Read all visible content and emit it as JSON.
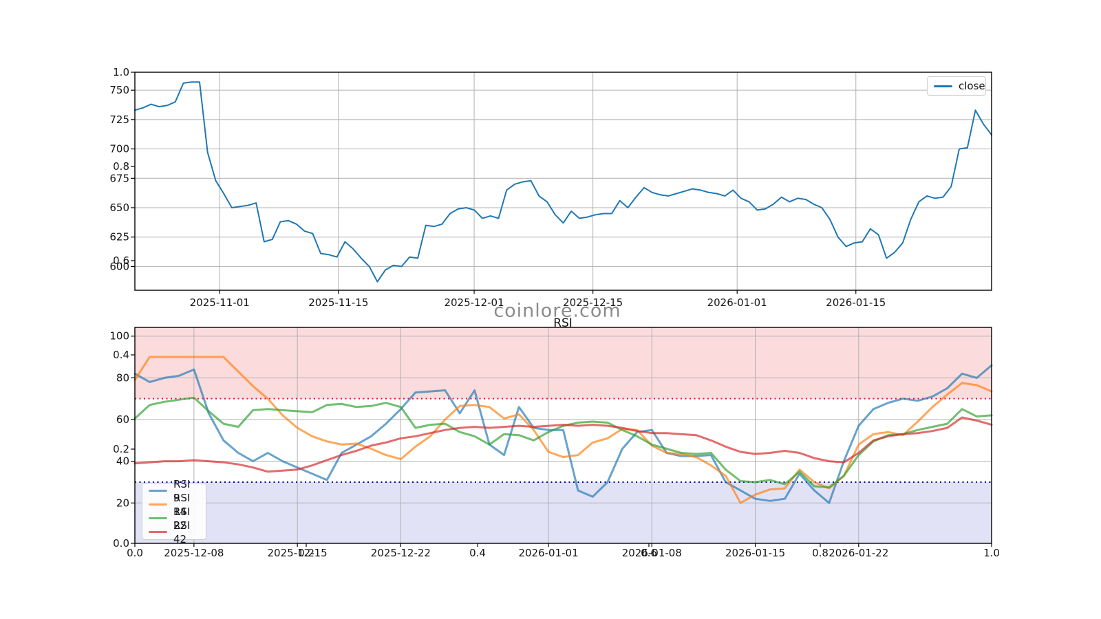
{
  "watermark": "coinlore.com",
  "secondary_axis": {
    "x_ticks": [
      "0.0",
      "0.2",
      "0.4",
      "0.6",
      "0.8",
      "1.0"
    ],
    "y_ticks": [
      "1.0",
      "0.8",
      "0.6",
      "0.4",
      "0.2",
      "0.0"
    ]
  },
  "chart_data": [
    {
      "id": "price",
      "type": "line",
      "title": "",
      "legend_position": "upper right",
      "x_start_date": "2025-10-22",
      "x_ticks": [
        "2025-11-01",
        "2025-11-15",
        "2025-12-01",
        "2025-12-15",
        "2026-01-01",
        "2026-01-15"
      ],
      "x_tick_days": [
        10,
        24,
        40,
        54,
        71,
        85
      ],
      "x_span_days": 101,
      "y_ticks": [
        750,
        725,
        700,
        675,
        650,
        625,
        600
      ],
      "ylim": [
        579.7,
        765.3
      ],
      "grid": true,
      "series": [
        {
          "name": "close",
          "color": "#1f77b4",
          "width": 2,
          "values": [
            733,
            735,
            738,
            736,
            737,
            740,
            756,
            757,
            757,
            697,
            673,
            662,
            650,
            651,
            652,
            654,
            621,
            623,
            638,
            639,
            636,
            630,
            628,
            611,
            610,
            608,
            621,
            615,
            607,
            600,
            587,
            597,
            601,
            600,
            608,
            607,
            635,
            634,
            636,
            645,
            649,
            650,
            648,
            641,
            643,
            641,
            665,
            670,
            672,
            673,
            660,
            655,
            644,
            637,
            647,
            641,
            642,
            644,
            645,
            645,
            656,
            650,
            659,
            667,
            663,
            661,
            660,
            662,
            664,
            666,
            665,
            663,
            662,
            660,
            665,
            658,
            655,
            648,
            649,
            653,
            659,
            655,
            658,
            657,
            653,
            650,
            640,
            625,
            617,
            620,
            621,
            632,
            627,
            607,
            612,
            620,
            640,
            655,
            660,
            658,
            659,
            668,
            700,
            701,
            733,
            721,
            712
          ]
        }
      ]
    },
    {
      "id": "rsi",
      "type": "line",
      "title": "RSI",
      "legend_position": "lower left",
      "x_start_date": "2025-12-04",
      "x_ticks": [
        "2025-12-08",
        "2025-12-15",
        "2025-12-22",
        "2026-01-01",
        "2026-01-08",
        "2026-01-15",
        "2026-01-22"
      ],
      "x_tick_days": [
        4,
        11,
        18,
        28,
        35,
        42,
        49
      ],
      "x_span_days": 58,
      "y_ticks": [
        100,
        80,
        60,
        40,
        20
      ],
      "ylim": [
        1.6,
        104.2
      ],
      "grid": true,
      "overbought": {
        "level": 70,
        "line_color": "#dc1430",
        "band_color": "#fbdbdb"
      },
      "oversold": {
        "level": 30,
        "line_color": "#00008b",
        "band_color": "#e2e2f6"
      },
      "series": [
        {
          "name": "RSI 9",
          "color": "rgba(31,119,180,0.68)",
          "width": 3,
          "values": [
            82,
            78,
            80,
            81,
            84,
            63,
            50,
            44,
            40,
            44,
            40,
            37,
            34,
            31,
            44,
            48,
            52,
            58,
            65,
            73,
            73.5,
            74,
            63,
            74,
            48,
            43,
            66,
            56,
            55,
            55,
            26,
            23,
            30,
            46,
            54,
            55,
            44,
            42.5,
            42.5,
            43,
            30,
            26,
            22,
            21,
            22,
            34,
            26,
            20,
            40,
            57,
            65,
            68,
            70,
            69,
            71,
            75,
            82,
            80,
            86
          ]
        },
        {
          "name": "RSI 14",
          "color": "rgba(255,127,14,0.68)",
          "width": 3,
          "values": [
            79,
            90,
            90,
            90,
            90,
            90,
            90,
            83,
            76,
            70,
            62,
            56,
            52,
            49.5,
            48,
            48.5,
            46,
            43,
            41,
            47,
            52,
            60,
            66.5,
            67,
            66,
            60.5,
            62.5,
            55,
            44.5,
            42,
            43,
            49,
            51,
            55.5,
            55,
            47.5,
            44,
            43.5,
            42,
            38,
            33,
            20,
            24,
            26.5,
            27,
            36,
            30,
            27,
            33,
            48,
            53,
            54,
            52.5,
            59,
            66,
            72,
            77.5,
            76.5,
            73.5
          ]
        },
        {
          "name": "RSI 22",
          "color": "rgba(44,160,44,0.68)",
          "width": 3,
          "values": [
            60.5,
            67,
            68.5,
            69.5,
            70.5,
            64,
            58,
            56.5,
            64.5,
            65,
            64.5,
            64,
            63.5,
            67,
            67.5,
            66,
            66.5,
            68,
            66,
            56,
            57.5,
            58,
            54,
            52,
            48,
            53,
            52.5,
            50,
            54,
            57,
            58.5,
            59,
            58.5,
            55,
            52,
            48,
            46,
            44,
            43.5,
            44,
            36,
            30.5,
            30,
            31,
            29,
            35,
            28,
            27.5,
            33,
            43,
            49.5,
            52.5,
            53,
            55,
            56.5,
            58,
            65,
            61.5,
            62
          ]
        },
        {
          "name": "RSI 42",
          "color": "rgba(214,39,40,0.68)",
          "width": 3,
          "values": [
            39,
            39.5,
            40,
            40,
            40.5,
            40,
            39.5,
            38.5,
            37,
            35,
            35.5,
            36,
            38,
            40.5,
            43,
            45,
            47.5,
            49,
            51,
            52,
            53.5,
            55,
            56,
            56.5,
            56,
            56.5,
            57,
            56.5,
            57,
            57.5,
            57,
            57.5,
            57,
            56,
            54.5,
            53.5,
            53.5,
            53,
            52.5,
            50,
            47,
            44.5,
            43.5,
            44,
            45,
            44,
            41.5,
            40,
            39.5,
            44,
            50,
            52,
            53,
            53.5,
            54.5,
            56,
            61,
            59.5,
            57.5
          ]
        }
      ]
    }
  ]
}
